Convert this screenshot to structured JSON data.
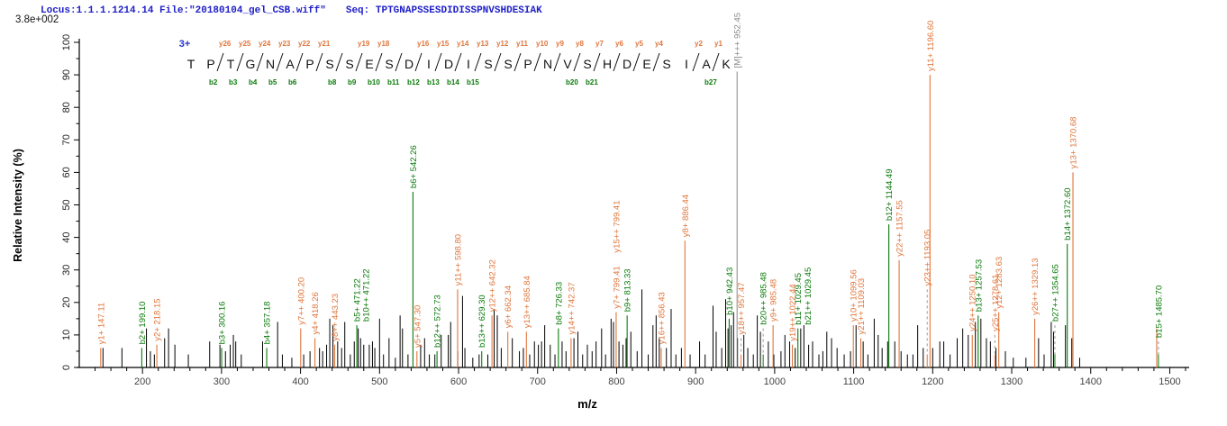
{
  "header": {
    "scale_label": "3.8e+002",
    "locus_file": "Locus:1.1.1.1214.14 File:\"20180104_gel_CSB.wiff\"",
    "seq": "Seq: TPTGNAPSSESDIDISSPNVSHDESIAK"
  },
  "axes": {
    "xlabel": "m/z",
    "ylabel": "Relative  Intensity (%)",
    "x_ticks": [
      200,
      300,
      400,
      500,
      600,
      700,
      800,
      900,
      1000,
      1100,
      1200,
      1300,
      1400,
      1500
    ],
    "y_ticks": [
      0,
      10,
      20,
      30,
      40,
      50,
      60,
      70,
      80,
      90,
      100
    ],
    "x_range": [
      120,
      1520
    ],
    "y_range": [
      0,
      100
    ],
    "x_minor_step": 20,
    "y_minor_step": 5
  },
  "sequence_ladder": {
    "charge_label": "3+",
    "residues": "TPTGNAPSSESDIDISSPNVSHDESIAK",
    "precursor_label": "[M]+++ 952.45",
    "sites": [
      {
        "i": 2,
        "y": "y26",
        "b": "b2"
      },
      {
        "i": 3,
        "y": "y25",
        "b": "b3"
      },
      {
        "i": 4,
        "y": "y24",
        "b": "b4"
      },
      {
        "i": 5,
        "y": "y23",
        "b": "b5"
      },
      {
        "i": 6,
        "y": "y22",
        "b": "b6"
      },
      {
        "i": 7,
        "y": "y21",
        "b": ""
      },
      {
        "i": 8,
        "y": "",
        "b": "b8"
      },
      {
        "i": 9,
        "y": "y19",
        "b": "b9"
      },
      {
        "i": 10,
        "y": "y18",
        "b": "b10"
      },
      {
        "i": 11,
        "y": "",
        "b": "b11"
      },
      {
        "i": 12,
        "y": "y16",
        "b": "b12"
      },
      {
        "i": 13,
        "y": "y15",
        "b": "b13"
      },
      {
        "i": 14,
        "y": "y14",
        "b": "b14"
      },
      {
        "i": 15,
        "y": "y13",
        "b": "b15"
      },
      {
        "i": 16,
        "y": "y12",
        "b": ""
      },
      {
        "i": 17,
        "y": "y11",
        "b": ""
      },
      {
        "i": 18,
        "y": "y10",
        "b": ""
      },
      {
        "i": 19,
        "y": "y9",
        "b": ""
      },
      {
        "i": 20,
        "y": "y8",
        "b": "b20"
      },
      {
        "i": 21,
        "y": "y7",
        "b": "b21"
      },
      {
        "i": 22,
        "y": "y6",
        "b": ""
      },
      {
        "i": 23,
        "y": "y5",
        "b": ""
      },
      {
        "i": 24,
        "y": "y4",
        "b": ""
      },
      {
        "i": 26,
        "y": "y2",
        "b": ""
      },
      {
        "i": 27,
        "y": "y1",
        "b": "b27"
      }
    ]
  },
  "chart_data": {
    "type": "bar",
    "subtype": "ms2-peptide-fragment-spectrum",
    "title": "",
    "xlabel": "m/z",
    "ylabel": "Relative  Intensity (%)",
    "xlim": [
      120,
      1520
    ],
    "ylim": [
      0,
      100
    ],
    "colors": {
      "y_ion": "#E0763C",
      "b_ion": "#0A7A0A",
      "precursor": "#8A8A8A",
      "unlabeled": "#000000",
      "dash": "#9A9A9A",
      "header_blue": "#2020C8",
      "axis_text": "#444444"
    },
    "labeled_peaks": [
      {
        "mz": 147.11,
        "h": 6,
        "ion": "y",
        "label": "y1+ 147.11"
      },
      {
        "mz": 199.1,
        "h": 6,
        "ion": "b",
        "label": "b2+ 199.10"
      },
      {
        "mz": 218.15,
        "h": 7,
        "ion": "y",
        "label": "y2+ 218.15"
      },
      {
        "mz": 300.16,
        "h": 6,
        "ion": "b",
        "label": "b3+ 300.16"
      },
      {
        "mz": 357.18,
        "h": 6,
        "ion": "b",
        "label": "b4+ 357.18"
      },
      {
        "mz": 400.2,
        "h": 12,
        "ion": "y",
        "label": "y7++ 400.20"
      },
      {
        "mz": 418.26,
        "h": 9,
        "ion": "y",
        "label": "y4+ 418.26"
      },
      {
        "mz": 443.23,
        "h": 7,
        "ion": "y",
        "label": "y8++ 443.23"
      },
      {
        "mz": 471.22,
        "h": 13,
        "ion": "b",
        "label": "b5+ 471.22"
      },
      {
        "mz": 471.22,
        "h": 13,
        "ion": "b",
        "label": "b10++ 471.22",
        "line": false,
        "dx": 10
      },
      {
        "mz": 542.26,
        "h": 54,
        "ion": "b",
        "label": "b6+ 542.26"
      },
      {
        "mz": 547.3,
        "h": 5,
        "ion": "y",
        "label": "y5+ 547.30"
      },
      {
        "mz": 572.73,
        "h": 5,
        "ion": "b",
        "label": "b12++ 572.73"
      },
      {
        "mz": 598.8,
        "h": 24,
        "ion": "y",
        "label": "y11++ 598.80"
      },
      {
        "mz": 629.3,
        "h": 5,
        "ion": "b",
        "label": "b13++ 629.30"
      },
      {
        "mz": 642.32,
        "h": 16,
        "ion": "y",
        "label": "y12++ 642.32"
      },
      {
        "mz": 662.34,
        "h": 11,
        "ion": "y",
        "label": "y6+ 662.34"
      },
      {
        "mz": 685.84,
        "h": 11,
        "ion": "y",
        "label": "y13++ 685.84"
      },
      {
        "mz": 726.33,
        "h": 12,
        "ion": "b",
        "label": "b8+ 726.33"
      },
      {
        "mz": 742.37,
        "h": 9,
        "ion": "y",
        "label": "y14++ 742.37"
      },
      {
        "mz": 799.41,
        "h": 17,
        "ion": "y",
        "label": "y7+ 799.41"
      },
      {
        "mz": 799.41,
        "h": 17,
        "ion": "y",
        "label": "y15++ 799.41",
        "line": false,
        "stack": 62
      },
      {
        "mz": 813.33,
        "h": 16,
        "ion": "b",
        "label": "b9+ 813.33"
      },
      {
        "mz": 856.43,
        "h": 6,
        "ion": "y",
        "label": "y16++ 856.43"
      },
      {
        "mz": 886.44,
        "h": 39,
        "ion": "y",
        "label": "y8+ 886.44"
      },
      {
        "mz": 942.43,
        "h": 15,
        "ion": "b",
        "label": "b10+ 942.43"
      },
      {
        "mz": 952.45,
        "h": 91,
        "ion": "M",
        "label": "[M]+++ 952.45"
      },
      {
        "mz": 957.47,
        "h": 9,
        "ion": "y",
        "label": "y18++ 957.47",
        "dash": true
      },
      {
        "mz": 985.48,
        "h": 12,
        "ion": "b",
        "label": "b20++ 985.48",
        "dash": true
      },
      {
        "mz": 985.48,
        "h": 13,
        "ion": "y",
        "label": "y9+ 985.48",
        "dx": 11
      },
      {
        "mz": 1022.44,
        "h": 7,
        "ion": "y",
        "label": "y19++ 1022.44"
      },
      {
        "mz": 1029.45,
        "h": 12,
        "ion": "b",
        "label": "b11+ 1029.45"
      },
      {
        "mz": 1029.45,
        "h": 12,
        "ion": "b",
        "label": "b21++ 1029.45",
        "line": false,
        "dx": 11
      },
      {
        "mz": 1099.56,
        "h": 13,
        "ion": "y",
        "label": "y10+ 1099.56"
      },
      {
        "mz": 1109.03,
        "h": 9,
        "ion": "y",
        "label": "y21++ 1109.03"
      },
      {
        "mz": 1144.49,
        "h": 44,
        "ion": "b",
        "label": "b12+ 1144.49"
      },
      {
        "mz": 1157.55,
        "h": 33,
        "ion": "y",
        "label": "y22++ 1157.55"
      },
      {
        "mz": 1193.05,
        "h": 24,
        "ion": "y",
        "label": "y23++ 1193.05",
        "dash": true
      },
      {
        "mz": 1196.6,
        "h": 90,
        "ion": "y",
        "label": "y11+ 1196.60"
      },
      {
        "mz": 1250.1,
        "h": 10,
        "ion": "y",
        "label": "y24++ 1250.10"
      },
      {
        "mz": 1257.53,
        "h": 16,
        "ion": "b",
        "label": "b13+ 1257.53"
      },
      {
        "mz": 1278.61,
        "h": 10,
        "ion": "y",
        "label": "y25++ 1278.61",
        "dash": true
      },
      {
        "mz": 1283.63,
        "h": 17,
        "ion": "y",
        "label": "y12+ 1283.63"
      },
      {
        "mz": 1329.13,
        "h": 15,
        "ion": "y",
        "label": "y26++ 1329.13"
      },
      {
        "mz": 1354.65,
        "h": 13,
        "ion": "b",
        "label": "b27++ 1354.65",
        "dash": true
      },
      {
        "mz": 1372.6,
        "h": 38,
        "ion": "b",
        "label": "b14+ 1372.60",
        "dx": -2
      },
      {
        "mz": 1370.68,
        "h": 60,
        "ion": "y",
        "label": "y13+ 1370.68",
        "dx": 6
      },
      {
        "mz": 1483.5,
        "h": 12,
        "ion": "y",
        "label": ""
      },
      {
        "mz": 1485.7,
        "h": 8,
        "ion": "b",
        "label": "b15+ 1485.70",
        "dash": true
      }
    ],
    "unlabeled_peaks": [
      [
        150,
        6
      ],
      [
        174,
        6
      ],
      [
        205,
        12
      ],
      [
        210,
        5
      ],
      [
        215,
        4
      ],
      [
        228,
        9
      ],
      [
        233,
        12
      ],
      [
        241,
        7
      ],
      [
        258,
        4
      ],
      [
        285,
        8
      ],
      [
        298,
        7
      ],
      [
        305,
        5
      ],
      [
        311,
        7
      ],
      [
        315,
        10
      ],
      [
        318,
        8
      ],
      [
        325,
        4
      ],
      [
        352,
        8
      ],
      [
        371,
        14
      ],
      [
        377,
        4
      ],
      [
        389,
        3
      ],
      [
        404,
        4
      ],
      [
        412,
        5
      ],
      [
        424,
        6
      ],
      [
        428,
        5
      ],
      [
        433,
        7
      ],
      [
        437,
        15
      ],
      [
        441,
        13
      ],
      [
        447,
        8
      ],
      [
        452,
        6
      ],
      [
        456,
        14
      ],
      [
        463,
        4
      ],
      [
        468,
        8
      ],
      [
        473,
        12
      ],
      [
        476,
        9
      ],
      [
        480,
        7
      ],
      [
        487,
        7
      ],
      [
        491,
        8
      ],
      [
        494,
        6
      ],
      [
        500,
        15
      ],
      [
        505,
        4
      ],
      [
        512,
        9
      ],
      [
        520,
        3
      ],
      [
        526,
        16
      ],
      [
        529,
        12
      ],
      [
        536,
        4
      ],
      [
        552,
        7
      ],
      [
        557,
        9
      ],
      [
        563,
        4
      ],
      [
        570,
        4
      ],
      [
        578,
        10
      ],
      [
        587,
        10
      ],
      [
        590,
        14
      ],
      [
        599,
        5
      ],
      [
        605,
        22
      ],
      [
        608,
        6
      ],
      [
        618,
        3
      ],
      [
        626,
        4
      ],
      [
        637,
        4
      ],
      [
        645,
        18
      ],
      [
        649,
        16
      ],
      [
        654,
        6
      ],
      [
        668,
        9
      ],
      [
        677,
        5
      ],
      [
        682,
        6
      ],
      [
        690,
        4
      ],
      [
        696,
        8
      ],
      [
        701,
        7
      ],
      [
        705,
        8
      ],
      [
        709,
        13
      ],
      [
        716,
        7
      ],
      [
        722,
        4
      ],
      [
        731,
        8
      ],
      [
        736,
        5
      ],
      [
        746,
        9
      ],
      [
        751,
        11
      ],
      [
        757,
        4
      ],
      [
        763,
        7
      ],
      [
        769,
        5
      ],
      [
        774,
        8
      ],
      [
        781,
        12
      ],
      [
        786,
        4
      ],
      [
        793,
        15
      ],
      [
        796,
        14
      ],
      [
        803,
        8
      ],
      [
        808,
        7
      ],
      [
        812,
        9
      ],
      [
        818,
        11
      ],
      [
        826,
        5
      ],
      [
        832,
        24
      ],
      [
        840,
        4
      ],
      [
        846,
        13
      ],
      [
        850,
        16
      ],
      [
        854,
        9
      ],
      [
        863,
        6
      ],
      [
        869,
        18
      ],
      [
        875,
        4
      ],
      [
        882,
        6
      ],
      [
        893,
        4
      ],
      [
        905,
        8
      ],
      [
        912,
        4
      ],
      [
        922,
        19
      ],
      [
        926,
        11
      ],
      [
        933,
        6
      ],
      [
        938,
        21
      ],
      [
        941,
        12
      ],
      [
        945,
        13
      ],
      [
        948,
        17
      ],
      [
        953,
        9
      ],
      [
        961,
        10
      ],
      [
        966,
        6
      ],
      [
        973,
        4
      ],
      [
        978,
        16
      ],
      [
        982,
        11
      ],
      [
        992,
        8
      ],
      [
        999,
        4
      ],
      [
        1008,
        5
      ],
      [
        1013,
        10
      ],
      [
        1019,
        8
      ],
      [
        1026,
        6
      ],
      [
        1033,
        12
      ],
      [
        1037,
        13
      ],
      [
        1043,
        7
      ],
      [
        1048,
        8
      ],
      [
        1056,
        4
      ],
      [
        1061,
        5
      ],
      [
        1066,
        11
      ],
      [
        1072,
        9
      ],
      [
        1079,
        6
      ],
      [
        1088,
        4
      ],
      [
        1096,
        5
      ],
      [
        1103,
        13
      ],
      [
        1112,
        8
      ],
      [
        1118,
        4
      ],
      [
        1126,
        15
      ],
      [
        1131,
        10
      ],
      [
        1136,
        6
      ],
      [
        1143,
        8
      ],
      [
        1152,
        8
      ],
      [
        1160,
        5
      ],
      [
        1168,
        4
      ],
      [
        1175,
        4
      ],
      [
        1181,
        13
      ],
      [
        1188,
        6
      ],
      [
        1200,
        6
      ],
      [
        1209,
        8
      ],
      [
        1214,
        8
      ],
      [
        1222,
        4
      ],
      [
        1231,
        9
      ],
      [
        1238,
        12
      ],
      [
        1245,
        10
      ],
      [
        1254,
        14
      ],
      [
        1261,
        15
      ],
      [
        1268,
        9
      ],
      [
        1273,
        8
      ],
      [
        1280,
        6
      ],
      [
        1292,
        5
      ],
      [
        1302,
        3
      ],
      [
        1318,
        3
      ],
      [
        1334,
        9
      ],
      [
        1341,
        4
      ],
      [
        1350,
        14
      ],
      [
        1353,
        11
      ],
      [
        1368,
        13
      ],
      [
        1376,
        9
      ],
      [
        1386,
        3
      ]
    ]
  }
}
